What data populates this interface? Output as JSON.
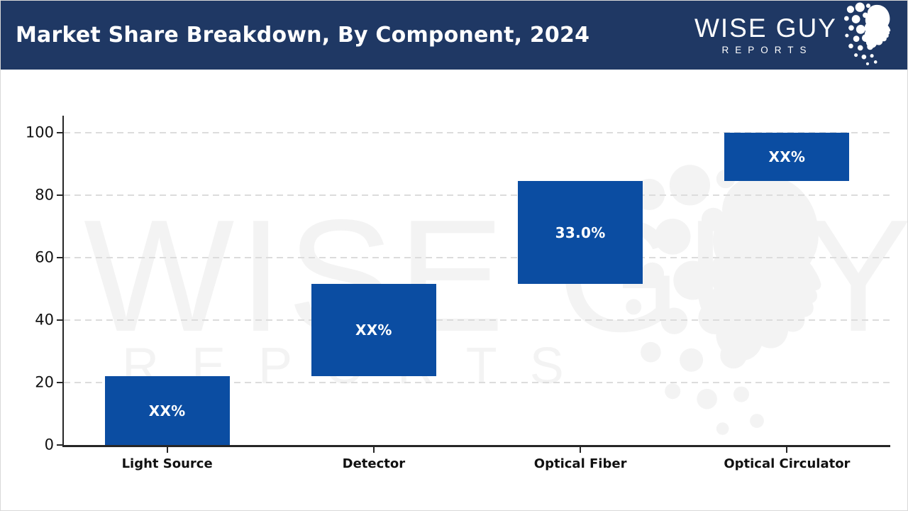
{
  "header": {
    "title": "Market Share Breakdown, By Component, 2024",
    "logo": {
      "line1": "WISE GUY",
      "line2": "REPORTS"
    }
  },
  "watermark": {
    "line1": "WISE GUY",
    "line2": "REPORTS"
  },
  "colors": {
    "header_bg": "#1f3864",
    "bar_fill": "#0b4da2",
    "bar_label_text": "#ffffff",
    "gridline": "#dcdcdc",
    "axis": "#262626",
    "watermark": "#f3f3f3"
  },
  "chart_data": {
    "type": "bar",
    "subtype": "waterfall-floating-bars",
    "title": "Market Share Breakdown, By Component, 2024",
    "xlabel": "",
    "ylabel": "",
    "categories": [
      "Light Source",
      "Detector",
      "Optical Fiber",
      "Optical Circulator"
    ],
    "bars": [
      {
        "category": "Light Source",
        "start": 0,
        "end": 22,
        "label": "XX%"
      },
      {
        "category": "Detector",
        "start": 22,
        "end": 51.5,
        "label": "XX%"
      },
      {
        "category": "Optical Fiber",
        "start": 51.5,
        "end": 84.5,
        "label": "33.0%"
      },
      {
        "category": "Optical Circulator",
        "start": 84.5,
        "end": 100,
        "label": "XX%"
      }
    ],
    "yticks": [
      0,
      20,
      40,
      60,
      80,
      100
    ],
    "ylim": [
      0,
      105.5
    ],
    "grid": "horizontal-dashed",
    "legend": "none"
  }
}
